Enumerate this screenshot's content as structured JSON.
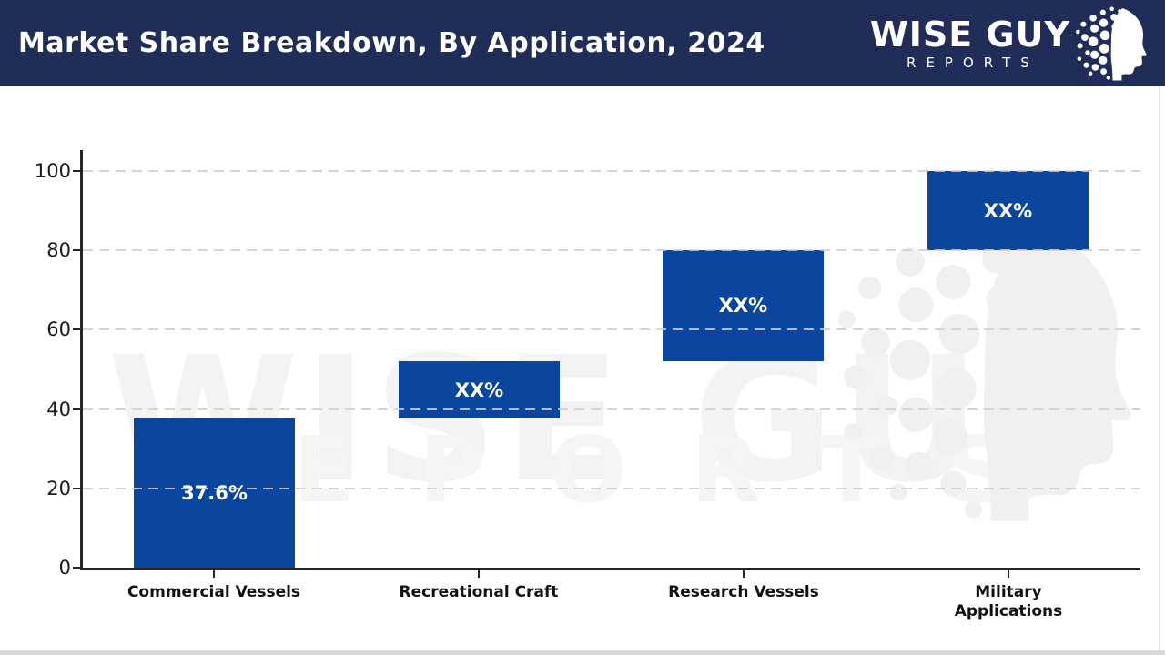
{
  "header": {
    "title": "Market Share Breakdown, By Application, 2024",
    "logo": {
      "line1": "WISE GUY",
      "line2": "REPORTS"
    }
  },
  "watermark": {
    "line1": "WISE GUY",
    "line2": "REPORTS"
  },
  "chart_data": {
    "type": "bar",
    "subtype": "waterfall",
    "title": "Market Share Breakdown, By Application, 2024",
    "categories": [
      "Commercial Vessels",
      "Recreational Craft",
      "Research Vessels",
      "Military Applications"
    ],
    "category_lines": [
      [
        "Commercial Vessels"
      ],
      [
        "Recreational Craft"
      ],
      [
        "Research Vessels"
      ],
      [
        "Military",
        "Applications"
      ]
    ],
    "segments": [
      {
        "category": "Commercial Vessels",
        "label": "37.6%",
        "start": 0,
        "end": 37.6
      },
      {
        "category": "Recreational Craft",
        "label": "XX%",
        "start": 37.6,
        "end": 52
      },
      {
        "category": "Research Vessels",
        "label": "XX%",
        "start": 52,
        "end": 80
      },
      {
        "category": "Military Applications",
        "label": "XX%",
        "start": 80,
        "end": 100
      }
    ],
    "yticks": [
      0,
      20,
      40,
      60,
      80,
      100
    ],
    "ylim": [
      0,
      100
    ],
    "grid": true,
    "legend": false,
    "bar_color": "#0a459e",
    "bar_label_color": "#ffffff",
    "axis_color": "#262626",
    "header_color": "#1f2d58"
  }
}
